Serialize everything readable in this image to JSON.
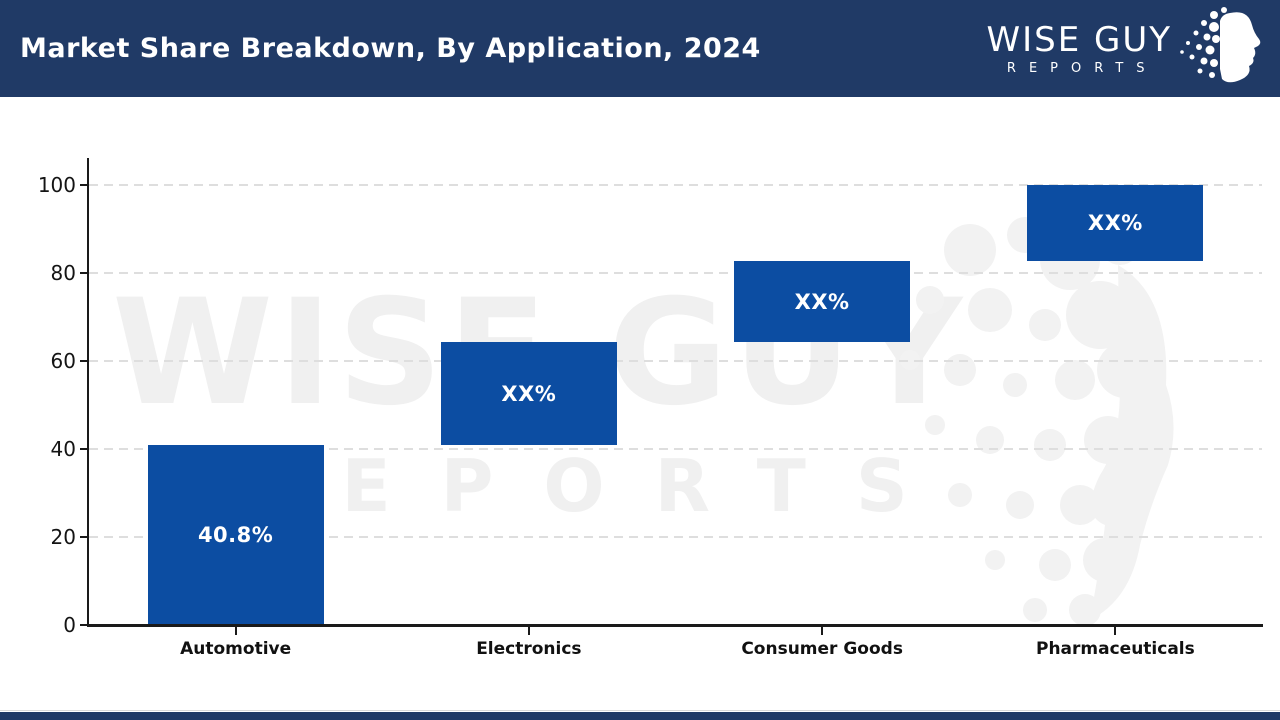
{
  "header": {
    "title": "Market Share Breakdown, By Application, 2024",
    "logo": {
      "line1": "WISE GUY",
      "line2": "REPORTS"
    }
  },
  "watermark": {
    "line1": "WISE GUY",
    "line2": "REPORTS"
  },
  "colors": {
    "header_bg": "#203a66",
    "footer_bg": "#203a66",
    "bar_fill": "#0c4da2",
    "grid_line": "#dedede",
    "axis_line": "#1a1a1a",
    "watermark": "#f0f0f0",
    "title_text": "#ffffff",
    "bar_label_text": "#ffffff",
    "tick_text": "#141414"
  },
  "chart_data": {
    "type": "bar",
    "subtype": "waterfall",
    "title": "Market Share Breakdown, By Application, 2024",
    "categories": [
      "Automotive",
      "Electronics",
      "Consumer Goods",
      "Pharmaceuticals"
    ],
    "segments": [
      {
        "category": "Automotive",
        "start": 0,
        "end": 40.8,
        "label": "40.8%"
      },
      {
        "category": "Electronics",
        "start": 40.8,
        "end": 64.3,
        "label": "XX%"
      },
      {
        "category": "Consumer Goods",
        "start": 64.3,
        "end": 82.7,
        "label": "XX%"
      },
      {
        "category": "Pharmaceuticals",
        "start": 82.7,
        "end": 100,
        "label": "XX%"
      }
    ],
    "ylim": [
      0,
      100
    ],
    "yticks": [
      0,
      20,
      40,
      60,
      80,
      100
    ],
    "xlabel": "",
    "ylabel": "",
    "legend": "none",
    "grid": "horizontal-dashed"
  }
}
